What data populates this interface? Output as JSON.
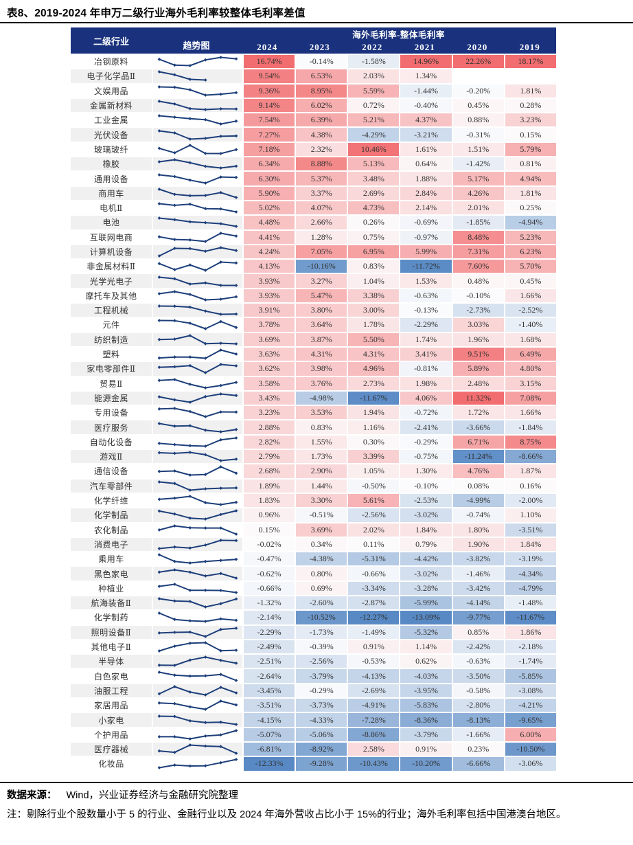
{
  "page_title": "表8、2019-2024 年申万二级行业海外毛利率较整体毛利率差值",
  "table": {
    "col1_header": "二级行业",
    "col2_header": "趋势图",
    "group_header": "海外毛利率-整体毛利率",
    "year_headers": [
      "2024",
      "2023",
      "2022",
      "2021",
      "2020",
      "2019"
    ]
  },
  "chart_data": {
    "type": "table",
    "title": "2019-2024 年申万二级行业海外毛利率较整体毛利率差值",
    "row_header": "二级行业",
    "trend_header": "趋势图",
    "group_header": "海外毛利率-整体毛利率",
    "columns": [
      "2024",
      "2023",
      "2022",
      "2021",
      "2020",
      "2019"
    ],
    "unit": "%",
    "heatmap": {
      "positive_color": "#F26D6F",
      "negative_color": "#5889C4",
      "neutral_color": "#FCFCFD",
      "positive_saturation": 11,
      "negative_saturation": 12
    },
    "sparkline_color": "#1D3F7A",
    "rows": [
      {
        "label": "冶钢原料",
        "values": [
          16.74,
          -0.14,
          -1.58,
          14.96,
          22.26,
          18.17
        ]
      },
      {
        "label": "电子化学品Ⅱ",
        "values": [
          9.54,
          6.53,
          2.03,
          1.34,
          null,
          null
        ]
      },
      {
        "label": "文娱用品",
        "values": [
          9.36,
          8.95,
          5.59,
          -1.44,
          -0.2,
          1.81
        ]
      },
      {
        "label": "金属新材料",
        "values": [
          9.14,
          6.02,
          0.72,
          -0.4,
          0.45,
          0.28
        ]
      },
      {
        "label": "工业金属",
        "values": [
          7.54,
          6.39,
          5.21,
          4.37,
          0.88,
          3.23
        ]
      },
      {
        "label": "光伏设备",
        "values": [
          7.27,
          4.38,
          -4.29,
          -3.21,
          -0.31,
          0.15
        ]
      },
      {
        "label": "玻璃玻纤",
        "values": [
          7.18,
          2.32,
          10.46,
          1.61,
          1.51,
          5.79
        ]
      },
      {
        "label": "橡胶",
        "values": [
          6.34,
          8.88,
          5.13,
          0.64,
          -1.42,
          0.81
        ]
      },
      {
        "label": "通用设备",
        "values": [
          6.3,
          5.37,
          3.48,
          1.88,
          5.17,
          4.94
        ]
      },
      {
        "label": "商用车",
        "values": [
          5.9,
          3.37,
          2.69,
          2.84,
          4.26,
          1.81
        ]
      },
      {
        "label": "电机Ⅱ",
        "values": [
          5.02,
          4.07,
          4.73,
          2.14,
          2.01,
          0.25
        ]
      },
      {
        "label": "电池",
        "values": [
          4.48,
          2.66,
          0.26,
          -0.69,
          -1.85,
          -4.94
        ]
      },
      {
        "label": "互联网电商",
        "values": [
          4.41,
          1.28,
          0.75,
          -0.97,
          8.48,
          5.23
        ]
      },
      {
        "label": "计算机设备",
        "values": [
          4.24,
          7.05,
          6.95,
          5.99,
          7.31,
          6.23
        ]
      },
      {
        "label": "非金属材料Ⅱ",
        "values": [
          4.13,
          -10.16,
          0.83,
          -11.72,
          7.6,
          5.7
        ]
      },
      {
        "label": "光学光电子",
        "values": [
          3.93,
          3.27,
          1.04,
          1.53,
          0.48,
          0.45
        ]
      },
      {
        "label": "摩托车及其他",
        "values": [
          3.93,
          5.47,
          3.38,
          -0.63,
          -0.1,
          1.66
        ]
      },
      {
        "label": "工程机械",
        "values": [
          3.91,
          3.8,
          3.0,
          -0.13,
          -2.73,
          -2.52
        ]
      },
      {
        "label": "元件",
        "values": [
          3.78,
          3.64,
          1.78,
          -2.29,
          3.03,
          -1.4
        ]
      },
      {
        "label": "纺织制造",
        "values": [
          3.69,
          3.87,
          5.5,
          1.74,
          1.96,
          1.68
        ]
      },
      {
        "label": "塑料",
        "values": [
          3.63,
          4.31,
          4.31,
          3.41,
          9.51,
          6.49
        ]
      },
      {
        "label": "家电零部件Ⅱ",
        "values": [
          3.62,
          3.98,
          4.96,
          -0.81,
          5.89,
          4.8
        ]
      },
      {
        "label": "贸易Ⅱ",
        "values": [
          3.58,
          3.76,
          2.73,
          1.98,
          2.48,
          3.15
        ]
      },
      {
        "label": "能源金属",
        "values": [
          3.43,
          -4.98,
          -11.67,
          4.06,
          11.32,
          7.08
        ]
      },
      {
        "label": "专用设备",
        "values": [
          3.23,
          3.53,
          1.94,
          -0.72,
          1.72,
          1.66
        ]
      },
      {
        "label": "医疗服务",
        "values": [
          2.88,
          0.83,
          1.16,
          -2.41,
          -3.66,
          -1.84
        ]
      },
      {
        "label": "自动化设备",
        "values": [
          2.82,
          1.55,
          0.3,
          -0.29,
          6.71,
          8.75
        ]
      },
      {
        "label": "游戏Ⅱ",
        "values": [
          2.79,
          1.73,
          3.39,
          -0.75,
          -11.24,
          -8.66
        ]
      },
      {
        "label": "通信设备",
        "values": [
          2.68,
          2.9,
          1.05,
          1.3,
          4.76,
          1.87
        ]
      },
      {
        "label": "汽车零部件",
        "values": [
          1.89,
          1.44,
          -0.5,
          -0.1,
          0.08,
          0.16
        ]
      },
      {
        "label": "化学纤维",
        "values": [
          1.83,
          3.3,
          5.61,
          -2.53,
          -4.99,
          -2.0
        ]
      },
      {
        "label": "化学制品",
        "values": [
          0.96,
          -0.51,
          -2.56,
          -3.02,
          -0.74,
          1.1
        ]
      },
      {
        "label": "农化制品",
        "values": [
          0.15,
          3.69,
          2.02,
          1.84,
          1.8,
          -3.51
        ]
      },
      {
        "label": "消费电子",
        "values": [
          -0.02,
          0.34,
          0.11,
          0.79,
          1.9,
          1.84
        ]
      },
      {
        "label": "乘用车",
        "values": [
          -0.47,
          -4.38,
          -5.31,
          -4.42,
          -3.82,
          -3.19
        ]
      },
      {
        "label": "黑色家电",
        "values": [
          -0.62,
          0.8,
          -0.66,
          -3.02,
          -1.46,
          -4.34
        ]
      },
      {
        "label": "种植业",
        "values": [
          -0.66,
          0.69,
          -3.34,
          -3.28,
          -3.42,
          -4.79
        ]
      },
      {
        "label": "航海装备Ⅱ",
        "values": [
          -1.32,
          -2.6,
          -2.87,
          -5.99,
          -4.14,
          -1.48
        ]
      },
      {
        "label": "化学制药",
        "values": [
          -2.14,
          -10.52,
          -12.27,
          -13.09,
          -9.77,
          -11.67
        ]
      },
      {
        "label": "照明设备Ⅱ",
        "values": [
          -2.29,
          -1.73,
          -1.49,
          -5.32,
          0.85,
          1.86
        ]
      },
      {
        "label": "其他电子Ⅱ",
        "values": [
          -2.49,
          -0.39,
          0.91,
          1.14,
          -2.42,
          -2.18
        ]
      },
      {
        "label": "半导体",
        "values": [
          -2.51,
          -2.56,
          -0.53,
          0.62,
          -0.63,
          -1.74
        ]
      },
      {
        "label": "白色家电",
        "values": [
          -2.64,
          -3.79,
          -4.13,
          -4.03,
          -3.5,
          -5.85
        ]
      },
      {
        "label": "油服工程",
        "values": [
          -3.45,
          -0.29,
          -2.69,
          -3.95,
          -0.58,
          -3.08
        ]
      },
      {
        "label": "家居用品",
        "values": [
          -3.51,
          -3.73,
          -4.91,
          -5.83,
          -2.8,
          -4.21
        ]
      },
      {
        "label": "小家电",
        "values": [
          -4.15,
          -4.33,
          -7.28,
          -8.36,
          -8.13,
          -9.65
        ]
      },
      {
        "label": "个护用品",
        "values": [
          -5.07,
          -5.06,
          -8.86,
          -3.79,
          -1.66,
          6.0
        ]
      },
      {
        "label": "医疗器械",
        "values": [
          -6.81,
          -8.92,
          2.58,
          0.91,
          0.23,
          -10.5
        ]
      },
      {
        "label": "化妆品",
        "values": [
          -12.33,
          -9.28,
          -10.43,
          -10.2,
          -6.66,
          -3.06
        ]
      }
    ]
  },
  "footer": {
    "source_label": "数据来源：",
    "source_text": "Wind，兴业证券经济与金融研究院整理",
    "note_text": "注：剔除行业个股数量小于 5 的行业、金融行业以及 2024 年海外营收占比小于 15%的行业；海外毛利率包括中国港澳台地区。"
  },
  "colors": {
    "header_bg": "#1A327E",
    "header_text": "#FFFFFF",
    "stripe_bg": "#F0F0F1",
    "rule": "#111111"
  }
}
